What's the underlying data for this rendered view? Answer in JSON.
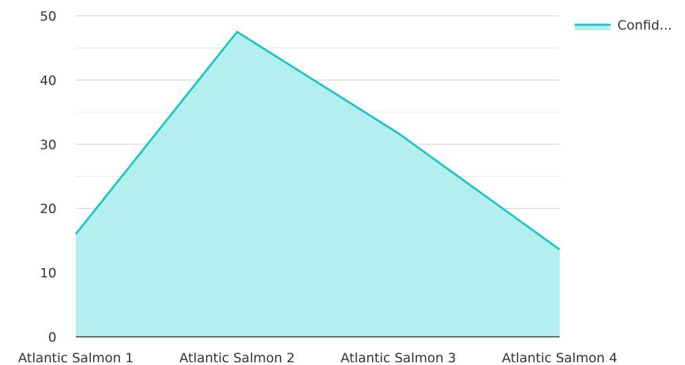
{
  "chart_data": {
    "type": "area",
    "categories": [
      "Atlantic Salmon 1",
      "Atlantic Salmon 2",
      "Atlantic Salmon 3",
      "Atlantic Salmon 4"
    ],
    "series": [
      {
        "name": "Confid...",
        "values": [
          16,
          47.5,
          31.7,
          13.6
        ],
        "color": "#1cc6c8",
        "fill": "#b3efef"
      }
    ],
    "yticks": [
      0,
      10,
      20,
      30,
      40,
      50
    ],
    "ylim": [
      0,
      50
    ],
    "grid": true,
    "legend": "top-right"
  }
}
